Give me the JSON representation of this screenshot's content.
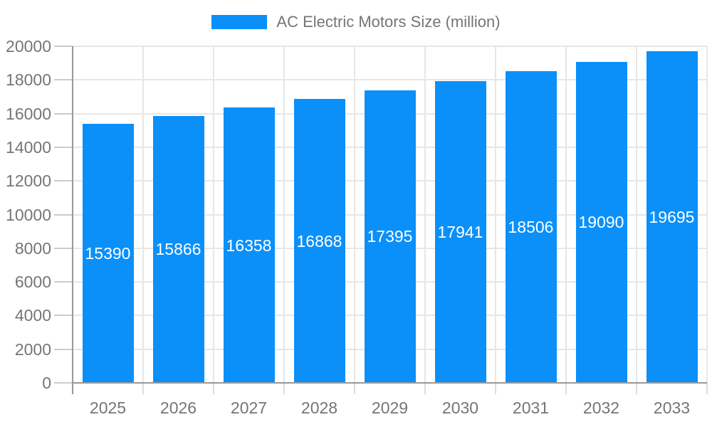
{
  "legend": {
    "label": "AC Electric Motors Size (million)"
  },
  "chart_data": {
    "type": "bar",
    "title": "AC Electric Motors Size (million)",
    "categories": [
      "2025",
      "2026",
      "2027",
      "2028",
      "2029",
      "2030",
      "2031",
      "2032",
      "2033"
    ],
    "series": [
      {
        "name": "AC Electric Motors Size (million)",
        "values": [
          15390,
          15866,
          16358,
          16868,
          17395,
          17941,
          18506,
          19090,
          19695
        ]
      }
    ],
    "xlabel": "",
    "ylabel": "",
    "ylim": [
      0,
      20000
    ],
    "yticks": [
      0,
      2000,
      4000,
      6000,
      8000,
      10000,
      12000,
      14000,
      16000,
      18000,
      20000
    ],
    "grid": true,
    "legend_position": "top",
    "value_labels_shown": true,
    "colors": {
      "bar": "#0b90f9",
      "grid": "#e6e6e6",
      "axis": "#999999",
      "y_tick": "#cccccc",
      "x_tick": "#dddddd",
      "tick_label": "#757575",
      "value_label": "#ffffff",
      "background": "#ffffff"
    }
  }
}
